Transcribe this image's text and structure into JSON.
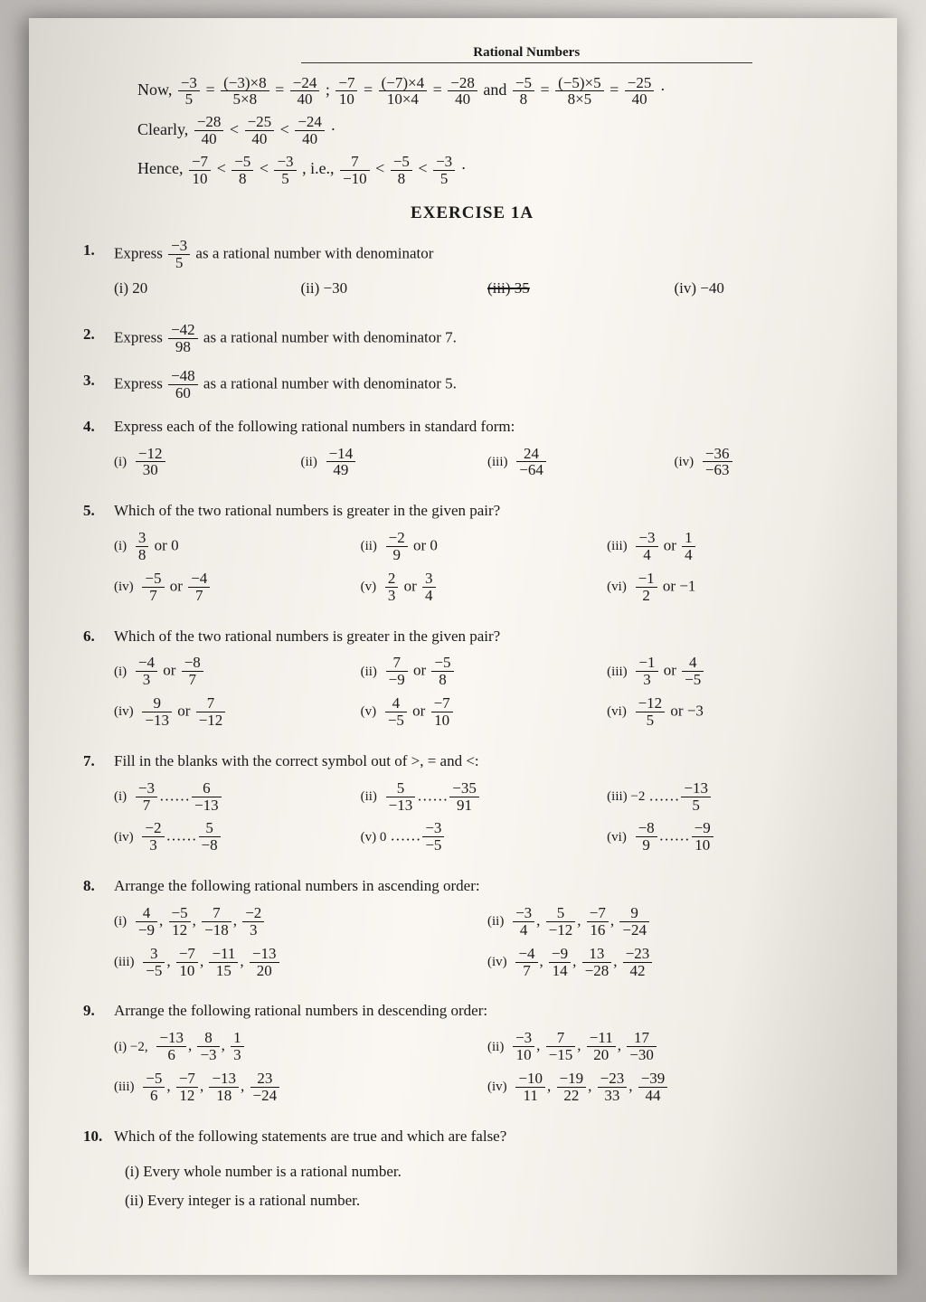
{
  "header": "Rational Numbers",
  "intro": {
    "line1_a": "Now, ",
    "line2_a": "Clearly, ",
    "line3_a": "Hence, ",
    "now_f1_n": "−3",
    "now_f1_d": "5",
    "now_f2_n": "(−3)×8",
    "now_f2_d": "5×8",
    "now_f3_n": "−24",
    "now_f3_d": "40",
    "now_f4_n": "−7",
    "now_f4_d": "10",
    "now_f5_n": "(−7)×4",
    "now_f5_d": "10×4",
    "now_f6_n": "−28",
    "now_f6_d": "40",
    "and": " and ",
    "now_f7_n": "−5",
    "now_f7_d": "8",
    "now_f8_n": "(−5)×5",
    "now_f8_d": "8×5",
    "now_f9_n": "−25",
    "now_f9_d": "40",
    "cl_f1_n": "−28",
    "cl_f1_d": "40",
    "cl_f2_n": "−25",
    "cl_f2_d": "40",
    "cl_f3_n": "−24",
    "cl_f3_d": "40",
    "he_f1_n": "−7",
    "he_f1_d": "10",
    "he_f2_n": "−5",
    "he_f2_d": "8",
    "he_f3_n": "−3",
    "he_f3_d": "5",
    "ie": ", i.e., ",
    "he_f4_n": "7",
    "he_f4_d": "−10",
    "he_f5_n": "−5",
    "he_f5_d": "8",
    "he_f6_n": "−3",
    "he_f6_d": "5"
  },
  "exercise_title": "EXERCISE 1A",
  "q1": {
    "stem_a": "Express ",
    "f_n": "−3",
    "f_d": "5",
    "stem_b": " as a rational number with denominator",
    "o1": "(i) 20",
    "o2": "(ii) −30",
    "o3": "(iii) 35",
    "o4": "(iv) −40"
  },
  "q2": {
    "stem_a": "Express ",
    "f_n": "−42",
    "f_d": "98",
    "stem_b": " as a rational number with denominator 7."
  },
  "q3": {
    "stem_a": "Express ",
    "f_n": "−48",
    "f_d": "60",
    "stem_b": " as a rational number with denominator 5."
  },
  "q4": {
    "stem": "Express each of the following rational numbers in standard form:",
    "o1": "(i) ",
    "f1n": "−12",
    "f1d": "30",
    "o2": "(ii) ",
    "f2n": "−14",
    "f2d": "49",
    "o3": "(iii) ",
    "f3n": "24",
    "f3d": "−64",
    "o4": "(iv) ",
    "f4n": "−36",
    "f4d": "−63"
  },
  "q5": {
    "stem": "Which of the two rational numbers is greater in the given pair?",
    "o1": "(i) ",
    "f1an": "3",
    "f1ad": "8",
    "or": " or ",
    "f1b": "0",
    "o2": "(ii) ",
    "f2an": "−2",
    "f2ad": "9",
    "f2b": "0",
    "o3": "(iii) ",
    "f3an": "−3",
    "f3ad": "4",
    "f3bn": "1",
    "f3bd": "4",
    "o4": "(iv) ",
    "f4an": "−5",
    "f4ad": "7",
    "f4bn": "−4",
    "f4bd": "7",
    "o5": "(v) ",
    "f5an": "2",
    "f5ad": "3",
    "f5bn": "3",
    "f5bd": "4",
    "o6": "(vi) ",
    "f6an": "−1",
    "f6ad": "2",
    "f6b": "−1"
  },
  "q6": {
    "stem": "Which of the two rational numbers is greater in the given pair?",
    "or": " or ",
    "o1": "(i) ",
    "f1an": "−4",
    "f1ad": "3",
    "f1bn": "−8",
    "f1bd": "7",
    "o2": "(ii) ",
    "f2an": "7",
    "f2ad": "−9",
    "f2bn": "−5",
    "f2bd": "8",
    "o3": "(iii) ",
    "f3an": "−1",
    "f3ad": "3",
    "f3bn": "4",
    "f3bd": "−5",
    "o4": "(iv) ",
    "f4an": "9",
    "f4ad": "−13",
    "f4bn": "7",
    "f4bd": "−12",
    "o5": "(v) ",
    "f5an": "4",
    "f5ad": "−5",
    "f5bn": "−7",
    "f5bd": "10",
    "o6": "(vi) ",
    "f6an": "−12",
    "f6ad": "5",
    "f6b": "−3"
  },
  "q7": {
    "stem": "Fill in the blanks with the correct symbol out of >, = and <:",
    "dots": "……",
    "o1": "(i) ",
    "f1an": "−3",
    "f1ad": "7",
    "f1bn": "6",
    "f1bd": "−13",
    "o2": "(ii) ",
    "f2an": "5",
    "f2ad": "−13",
    "f2bn": "−35",
    "f2bd": "91",
    "o3": "(iii) −2",
    "f3bn": "−13",
    "f3bd": "5",
    "o4": "(iv) ",
    "f4an": "−2",
    "f4ad": "3",
    "f4bn": "5",
    "f4bd": "−8",
    "o5": "(v) 0",
    "f5bn": "−3",
    "f5bd": "−5",
    "o6": "(vi) ",
    "f6an": "−8",
    "f6ad": "9",
    "f6bn": "−9",
    "f6bd": "10"
  },
  "q8": {
    "stem": "Arrange the following rational numbers in ascending order:",
    "c": ", ",
    "o1": "(i) ",
    "a1n": "4",
    "a1d": "−9",
    "a2n": "−5",
    "a2d": "12",
    "a3n": "7",
    "a3d": "−18",
    "a4n": "−2",
    "a4d": "3",
    "o2": "(ii) ",
    "b1n": "−3",
    "b1d": "4",
    "b2n": "5",
    "b2d": "−12",
    "b3n": "−7",
    "b3d": "16",
    "b4n": "9",
    "b4d": "−24",
    "o3": "(iii) ",
    "c1n": "3",
    "c1d": "−5",
    "c2n": "−7",
    "c2d": "10",
    "c3n": "−11",
    "c3d": "15",
    "c4n": "−13",
    "c4d": "20",
    "o4": "(iv) ",
    "d1n": "−4",
    "d1d": "7",
    "d2n": "−9",
    "d2d": "14",
    "d3n": "13",
    "d3d": "−28",
    "d4n": "−23",
    "d4d": "42"
  },
  "q9": {
    "stem": "Arrange the following rational numbers in descending order:",
    "c": ", ",
    "o1": "(i) −2, ",
    "a1n": "−13",
    "a1d": "6",
    "a2n": "8",
    "a2d": "−3",
    "a3n": "1",
    "a3d": "3",
    "o2": "(ii) ",
    "b1n": "−3",
    "b1d": "10",
    "b2n": "7",
    "b2d": "−15",
    "b3n": "−11",
    "b3d": "20",
    "b4n": "17",
    "b4d": "−30",
    "o3": "(iii) ",
    "c1n": "−5",
    "c1d": "6",
    "c2n": "−7",
    "c2d": "12",
    "c3n": "−13",
    "c3d": "18",
    "c4n": "23",
    "c4d": "−24",
    "o4": "(iv) ",
    "d1n": "−10",
    "d1d": "11",
    "d2n": "−19",
    "d2d": "22",
    "d3n": "−23",
    "d3d": "33",
    "d4n": "−39",
    "d4d": "44"
  },
  "q10": {
    "stem": "Which of the following statements are true and which are false?",
    "s1": "(i) Every whole number is a rational number.",
    "s2": "(ii) Every integer is a rational number."
  }
}
